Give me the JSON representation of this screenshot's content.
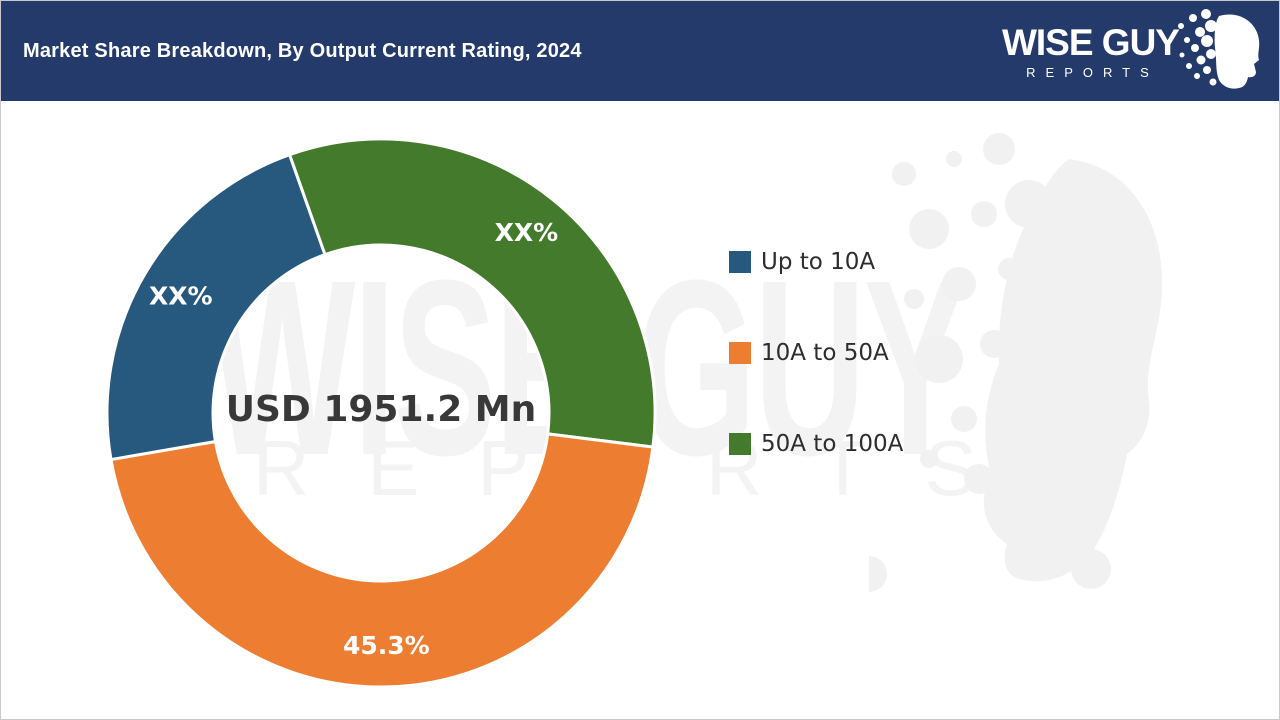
{
  "header": {
    "title": "Market Share Breakdown, By Output Current Rating, 2024",
    "logo": {
      "line1": "WISE GUY",
      "line2": "REPORTS"
    }
  },
  "colors": {
    "header_bg": "#243a6b",
    "blue": "#27587e",
    "orange": "#ed7d31",
    "green": "#447a2b",
    "watermark": "#f3f3f3"
  },
  "watermark": {
    "line1": "WISE GUY",
    "line2": "REPORTS"
  },
  "chart_data": {
    "type": "pie",
    "subtype": "donut",
    "title": "Market Share Breakdown, By Output Current Rating, 2024",
    "center_label": "USD 1951.2 Mn",
    "start_angle_deg": -19.5,
    "clockwise": true,
    "legend_position": "right",
    "categories": [
      "50A to 100A",
      "10A to 50A",
      "Up to 10A"
    ],
    "values": [
      32.4,
      45.3,
      22.3
    ],
    "segments": [
      {
        "label": "50A to 100A",
        "value_pct": 32.4,
        "display_label": "XX%",
        "color": "#447a2b"
      },
      {
        "label": "10A to 50A",
        "value_pct": 45.3,
        "display_label": "45.3%",
        "color": "#ed7d31"
      },
      {
        "label": "Up to 10A",
        "value_pct": 22.3,
        "display_label": "XX%",
        "color": "#27587e"
      }
    ]
  },
  "legend": {
    "items": [
      {
        "label": "Up to 10A",
        "color": "#27587e"
      },
      {
        "label": "10A to 50A",
        "color": "#ed7d31"
      },
      {
        "label": "50A to 100A",
        "color": "#447a2b"
      }
    ]
  }
}
